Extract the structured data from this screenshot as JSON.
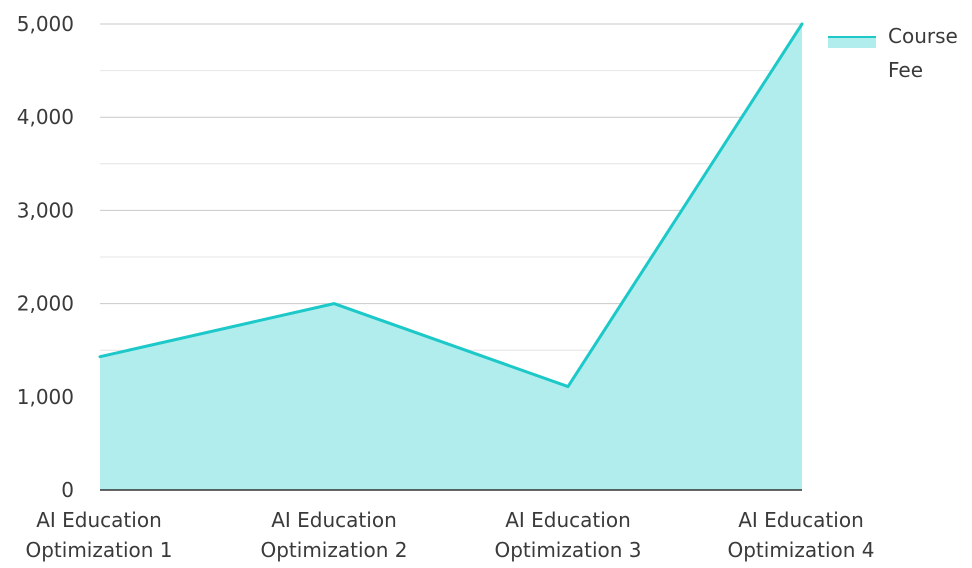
{
  "chart_data": {
    "type": "area",
    "title": "",
    "xlabel": "",
    "ylabel": "",
    "categories": [
      "AI Education Optimization 1",
      "AI Education Optimization 2",
      "AI Education Optimization 3",
      "AI Education Optimization 4"
    ],
    "category_label_lines": [
      [
        "AI Education",
        "Optimization 1"
      ],
      [
        "AI Education",
        "Optimization 2"
      ],
      [
        "AI Education",
        "Optimization 3"
      ],
      [
        "AI Education",
        "Optimization 4"
      ]
    ],
    "series": [
      {
        "name": "Course Fee",
        "values": [
          1430,
          2000,
          1110,
          5000
        ],
        "line_color": "#1cc8c8",
        "fill_color": "#b2eded"
      }
    ],
    "ylim": [
      0,
      5000
    ],
    "y_ticks": [
      0,
      1000,
      2000,
      3000,
      4000,
      5000
    ],
    "y_tick_labels": [
      "0",
      "1,000",
      "2,000",
      "3,000",
      "4,000",
      "5,000"
    ],
    "grid": true,
    "legend": {
      "position": "top-right",
      "label_lines": [
        "Course",
        "Fee"
      ]
    }
  }
}
